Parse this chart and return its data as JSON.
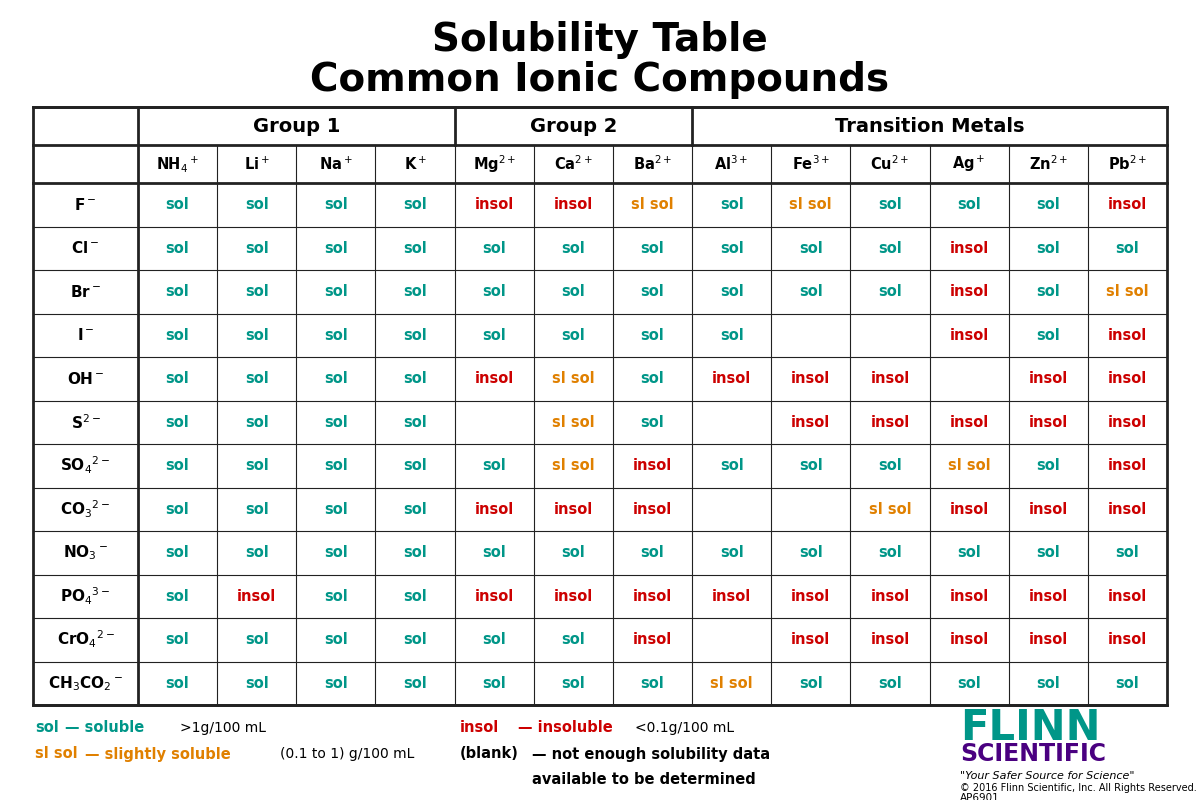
{
  "title_line1": "Solubility Table",
  "title_line2": "Common Ionic Compounds",
  "col_headers": [
    "",
    "NH$_4$$^+$",
    "Li$^+$",
    "Na$^+$",
    "K$^+$",
    "Mg$^{2+}$",
    "Ca$^{2+}$",
    "Ba$^{2+}$",
    "Al$^{3+}$",
    "Fe$^{3+}$",
    "Cu$^{2+}$",
    "Ag$^+$",
    "Zn$^{2+}$",
    "Pb$^{2+}$"
  ],
  "row_headers": [
    "F$^-$",
    "Cl$^-$",
    "Br$^-$",
    "I$^-$",
    "OH$^-$",
    "S$^{2-}$",
    "SO$_4$$^{2-}$",
    "CO$_3$$^{2-}$",
    "NO$_3$$^-$",
    "PO$_4$$^{3-}$",
    "CrO$_4$$^{2-}$",
    "CH$_3$CO$_2$$^-$"
  ],
  "sol_color": "#009688",
  "insol_color": "#cc0000",
  "slsol_color": "#e08000",
  "bg_color": "#ffffff",
  "border_color": "#222222",
  "table_data": [
    [
      "sol",
      "sol",
      "sol",
      "sol",
      "insol",
      "insol",
      "sl sol",
      "sol",
      "sl sol",
      "sol",
      "sol",
      "sol",
      "insol"
    ],
    [
      "sol",
      "sol",
      "sol",
      "sol",
      "sol",
      "sol",
      "sol",
      "sol",
      "sol",
      "sol",
      "insol",
      "sol",
      "sol"
    ],
    [
      "sol",
      "sol",
      "sol",
      "sol",
      "sol",
      "sol",
      "sol",
      "sol",
      "sol",
      "sol",
      "insol",
      "sol",
      "sl sol"
    ],
    [
      "sol",
      "sol",
      "sol",
      "sol",
      "sol",
      "sol",
      "sol",
      "sol",
      "",
      "",
      "insol",
      "sol",
      "insol"
    ],
    [
      "sol",
      "sol",
      "sol",
      "sol",
      "insol",
      "sl sol",
      "sol",
      "insol",
      "insol",
      "insol",
      "",
      "insol",
      "insol"
    ],
    [
      "sol",
      "sol",
      "sol",
      "sol",
      "",
      "sl sol",
      "sol",
      "",
      "insol",
      "insol",
      "insol",
      "insol",
      "insol"
    ],
    [
      "sol",
      "sol",
      "sol",
      "sol",
      "sol",
      "sl sol",
      "insol",
      "sol",
      "sol",
      "sol",
      "sl sol",
      "sol",
      "insol"
    ],
    [
      "sol",
      "sol",
      "sol",
      "sol",
      "insol",
      "insol",
      "insol",
      "",
      "",
      "sl sol",
      "insol",
      "insol",
      "insol"
    ],
    [
      "sol",
      "sol",
      "sol",
      "sol",
      "sol",
      "sol",
      "sol",
      "sol",
      "sol",
      "sol",
      "sol",
      "sol",
      "sol"
    ],
    [
      "sol",
      "insol",
      "sol",
      "sol",
      "insol",
      "insol",
      "insol",
      "insol",
      "insol",
      "insol",
      "insol",
      "insol",
      "insol"
    ],
    [
      "sol",
      "sol",
      "sol",
      "sol",
      "sol",
      "sol",
      "insol",
      "",
      "insol",
      "insol",
      "insol",
      "insol",
      "insol"
    ],
    [
      "sol",
      "sol",
      "sol",
      "sol",
      "sol",
      "sol",
      "sol",
      "sl sol",
      "sol",
      "sol",
      "sol",
      "sol",
      "sol"
    ]
  ],
  "flinn_color": "#009688",
  "scientific_color": "#4a0080"
}
